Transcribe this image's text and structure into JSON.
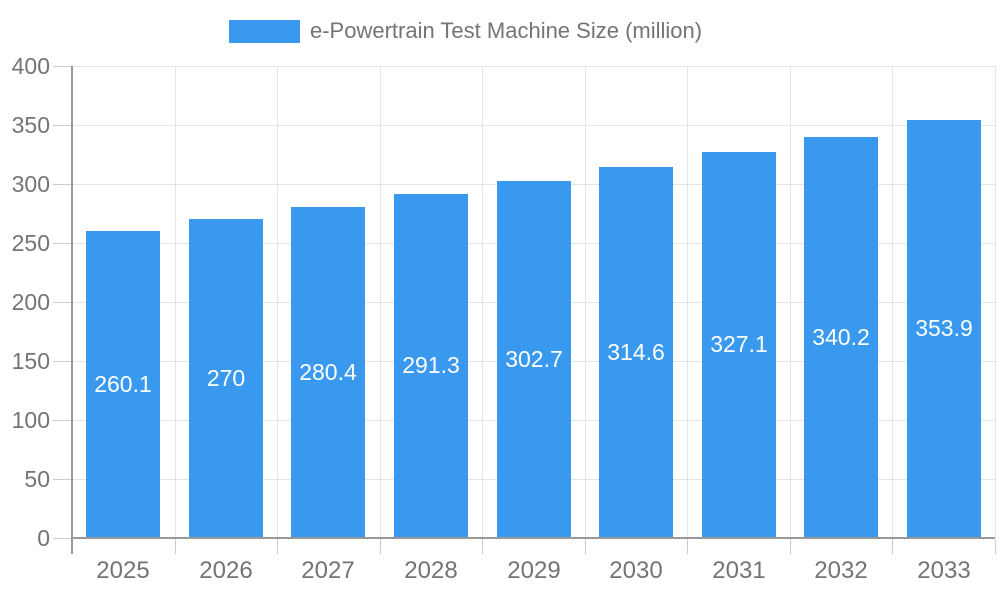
{
  "legend": {
    "label": "e-Powertrain Test Machine Size (million)"
  },
  "colors": {
    "bar": "#3999ee",
    "grid": "#e4e4e4",
    "axis": "#999999",
    "tick": "#cccccc",
    "axis_text": "#747474",
    "bar_label_text": "#ffffff",
    "background": "#ffffff"
  },
  "chart_data": {
    "type": "bar",
    "title": "",
    "legend": "e-Powertrain Test Machine Size (million)",
    "legend_position": "top",
    "categories": [
      "2025",
      "2026",
      "2027",
      "2028",
      "2029",
      "2030",
      "2031",
      "2032",
      "2033"
    ],
    "values": [
      260.1,
      270,
      280.4,
      291.3,
      302.7,
      314.6,
      327.1,
      340.2,
      353.9
    ],
    "value_labels": [
      "260.1",
      "270",
      "280.4",
      "291.3",
      "302.7",
      "314.6",
      "327.1",
      "340.2",
      "353.9"
    ],
    "y_tick_labels": [
      "0",
      "50",
      "100",
      "150",
      "200",
      "250",
      "300",
      "350",
      "400"
    ],
    "xlabel": "",
    "ylabel": "",
    "ylim": [
      0,
      400
    ],
    "ytick_step": 50,
    "grid": true,
    "value_label_position": "inside-center"
  }
}
